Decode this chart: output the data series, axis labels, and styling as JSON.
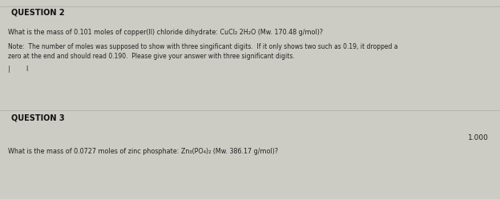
{
  "bg_color": "#cccbc4",
  "section1_title": "QUESTION 2",
  "section1_body_line1": "What is the mass of 0.101 moles of copper(II) chloride dihydrate: CuCl₂ 2H₂O (Mw. 170.48 g/mol)?",
  "section1_note_line1": "Note:  The number of moles was supposed to show with three singificant digits.  If it only shows two such as 0.19, it dropped a",
  "section1_note_line2": "zero at the end and should read 0.190.  Please give your answer with three significant digits.",
  "cursor_bar": "|",
  "cursor_I": "I",
  "section2_title": "QUESTION 3",
  "section2_value": "1.000",
  "section2_body": "What is the mass of 0.0727 moles of zinc phosphate: Zn₃(PO₄)₂ (Mw. 386.17 g/mol)?",
  "divider_color": "#b0afa8",
  "text_color": "#222222",
  "title_color": "#111111",
  "font_size_title": 7.0,
  "font_size_body": 5.8,
  "font_size_note": 5.5,
  "font_size_value": 6.5,
  "fig_width": 6.24,
  "fig_height": 2.49,
  "dpi": 100
}
